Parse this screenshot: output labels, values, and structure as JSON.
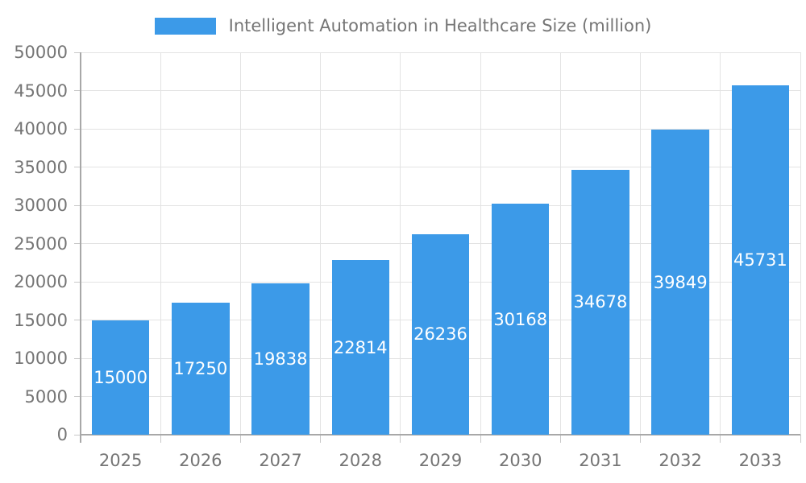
{
  "chart_data": {
    "type": "bar",
    "title": "Intelligent Automation in Healthcare Size (million)",
    "categories": [
      "2025",
      "2026",
      "2027",
      "2028",
      "2029",
      "2030",
      "2031",
      "2032",
      "2033"
    ],
    "series": [
      {
        "name": "Intelligent Automation in Healthcare Size (million)",
        "values": [
          15000,
          17250,
          19838,
          22814,
          26236,
          30168,
          34678,
          39849,
          45731
        ]
      }
    ],
    "xlabel": "",
    "ylabel": "",
    "ylim": [
      0,
      50000
    ],
    "yticks": [
      0,
      5000,
      10000,
      15000,
      20000,
      25000,
      30000,
      35000,
      40000,
      45000,
      50000
    ],
    "ytick_labels": [
      "0",
      "5000",
      "10000",
      "15000",
      "20000",
      "25000",
      "30000",
      "35000",
      "40000",
      "45000",
      "50000"
    ],
    "grid": "both",
    "legend_position": "top",
    "show_value_labels": true,
    "colors": {
      "bar": "#3C9AE8",
      "grid": "#e3e3e3",
      "axis": "#a8a8a8",
      "tick": "#c8c8c8",
      "text": "#757575",
      "value_label": "#ffffff"
    }
  }
}
